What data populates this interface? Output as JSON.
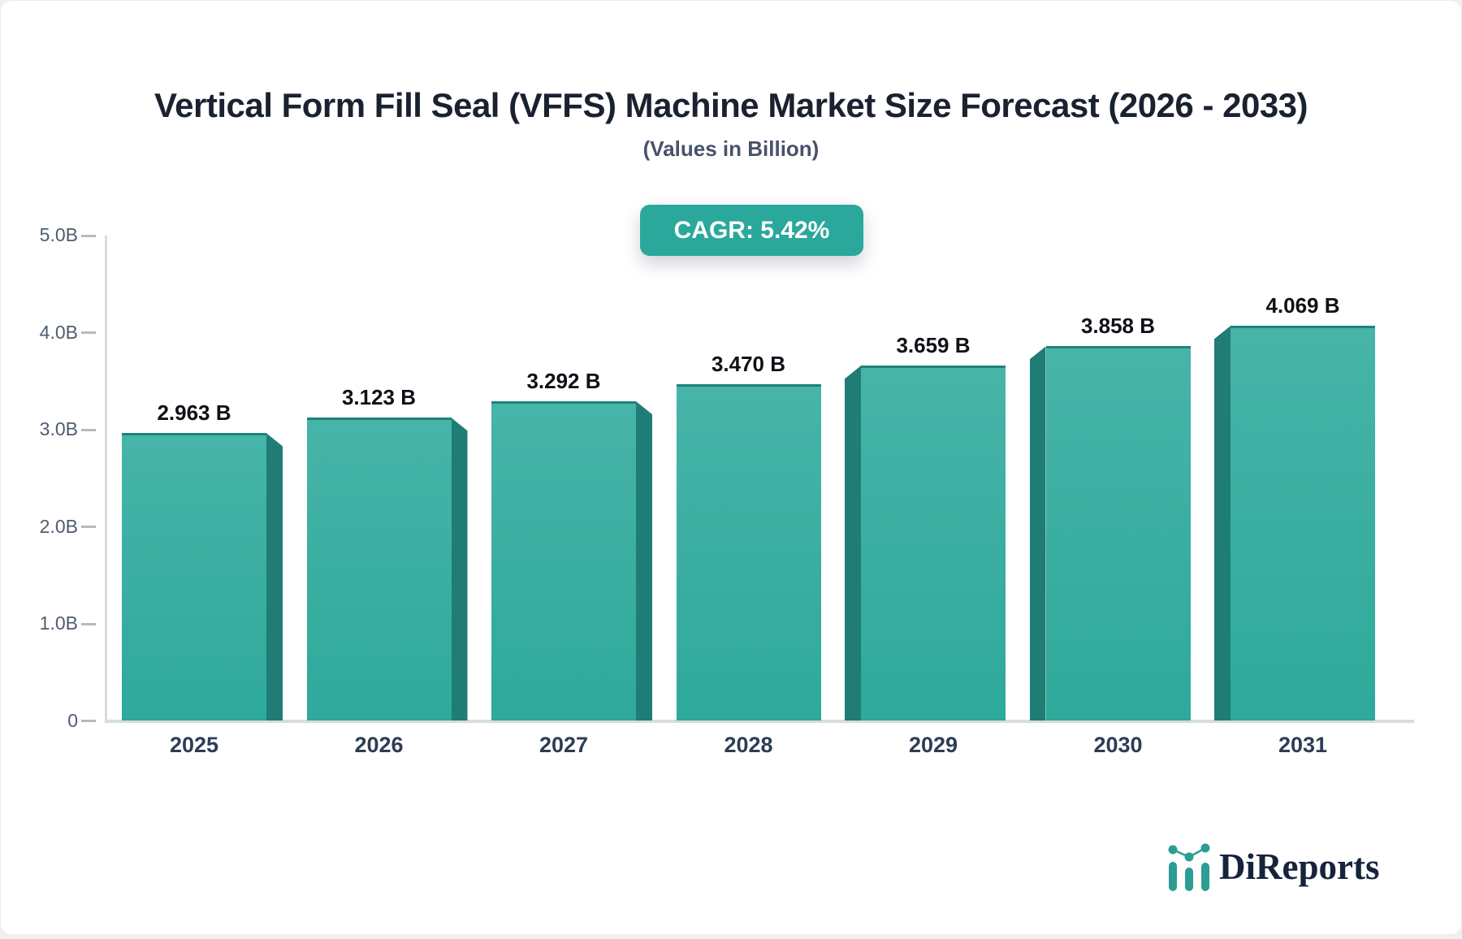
{
  "title": "Vertical Form Fill Seal (VFFS) Machine Market Size Forecast (2026 - 2033)",
  "subtitle": "(Values in Billion)",
  "badge": {
    "label": "CAGR: 5.42%",
    "color": "#2aa89b"
  },
  "chart_data": {
    "type": "bar",
    "categories": [
      "2025",
      "2026",
      "2027",
      "2028",
      "2029",
      "2030",
      "2031"
    ],
    "values": [
      2.963,
      3.123,
      3.292,
      3.47,
      3.659,
      3.858,
      4.069
    ],
    "value_labels": [
      "2.963 B",
      "3.123 B",
      "3.292 B",
      "3.470 B",
      "3.659 B",
      "3.858 B",
      "4.069 B"
    ],
    "title": "Vertical Form Fill Seal (VFFS) Machine Market Size Forecast (2026 - 2033)",
    "subtitle": "(Values in Billion)",
    "xlabel": "",
    "ylabel": "",
    "ytick_labels": [
      "0",
      "1.0B",
      "2.0B",
      "3.0B",
      "4.0B",
      "5.0B"
    ],
    "ytick_values": [
      0,
      1,
      2,
      3,
      4,
      5
    ],
    "ylim": [
      0,
      5.0
    ],
    "grid": false,
    "legend_position": "none",
    "style": "3d-bars",
    "colors": {
      "bar_face_top": "#47b4a8",
      "bar_face_bottom": "#2ea99b",
      "bar_top_edge": "#1d837b",
      "bar_side": "#1f7d76",
      "axis_line": "#d8dbdf",
      "tick_dash": "#b4bac2",
      "ytick_text": "#4f5d6f",
      "xtick_text": "#2e3c54",
      "value_text": "#0e1116"
    }
  },
  "logo": {
    "text": "DiReports",
    "icon": "bar-chart-logo-icon",
    "color": "#16233c",
    "icon_color": "#2a9d94"
  }
}
